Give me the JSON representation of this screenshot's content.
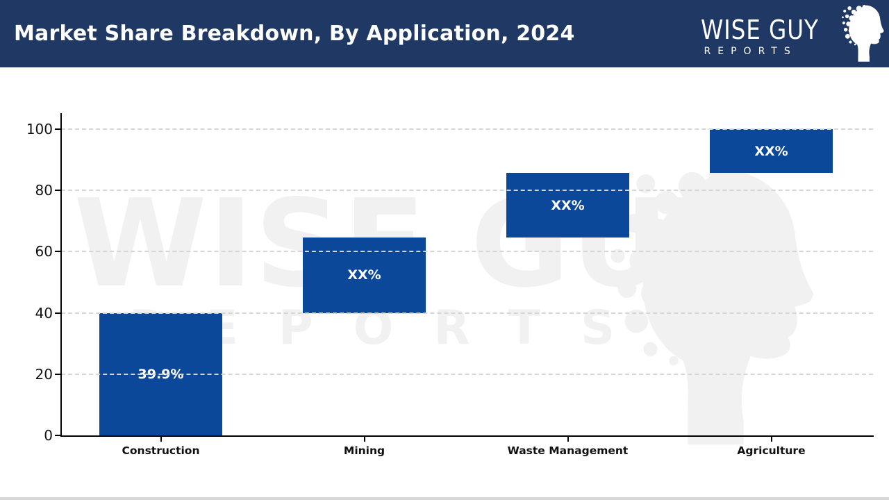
{
  "header": {
    "title": "Market Share Breakdown, By Application, 2024",
    "brand_line1": "WISE GUY",
    "brand_line2": "REPORTS"
  },
  "watermark": {
    "line1": "WISE GUY",
    "line2": "REPORTS"
  },
  "chart_data": {
    "type": "bar",
    "subtype": "waterfall",
    "title": "Market Share Breakdown, By Application, 2024",
    "categories": [
      "Construction",
      "Mining",
      "Waste Management",
      "Agriculture"
    ],
    "segments": [
      {
        "category": "Construction",
        "start": 0,
        "end": 40,
        "label": "39.9%"
      },
      {
        "category": "Mining",
        "start": 40,
        "end": 64.6,
        "label": "XX%"
      },
      {
        "category": "Waste Management",
        "start": 64.6,
        "end": 85.7,
        "label": "XX%"
      },
      {
        "category": "Agriculture",
        "start": 85.7,
        "end": 100,
        "label": "XX%"
      }
    ],
    "ylim": [
      0,
      105
    ],
    "yticks": [
      0,
      20,
      40,
      60,
      80,
      100
    ],
    "xlabel": "",
    "ylabel": "",
    "grid": "horizontal-dashed",
    "legend": "none",
    "bar_color": "#0b4899",
    "bar_label_color": "#ffffff",
    "axis_color": "#000000",
    "grid_color": "#d4d4d4",
    "header_color": "#1f3864",
    "watermark_color": "#f1f1f1"
  }
}
